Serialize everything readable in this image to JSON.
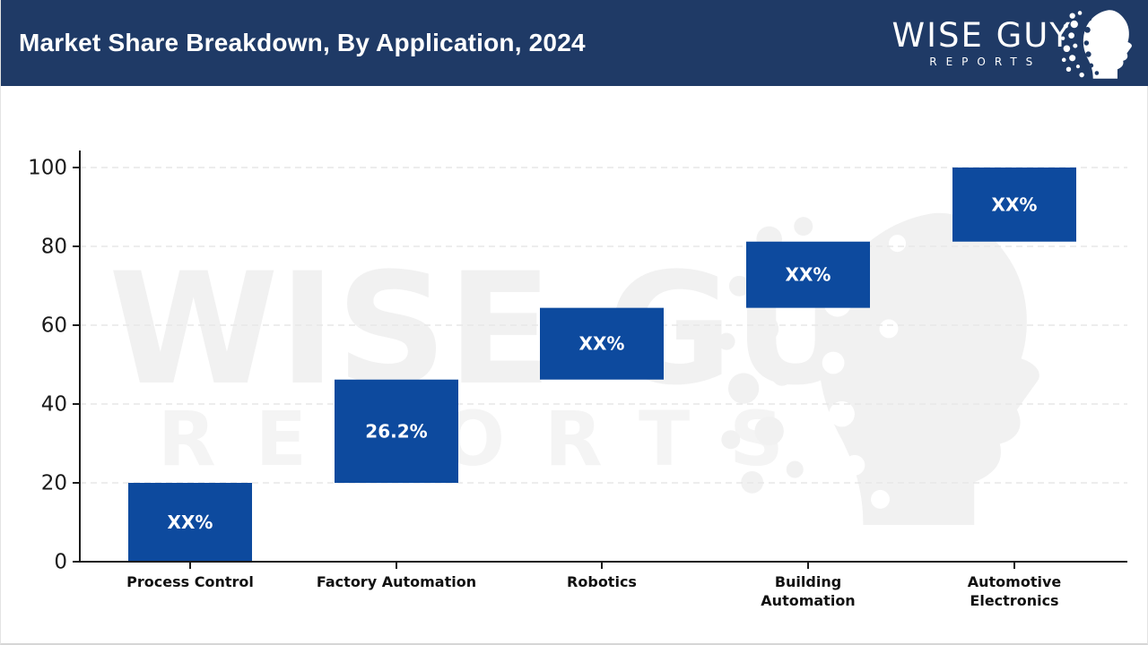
{
  "header": {
    "title": "Market Share Breakdown, By Application, 2024",
    "logo": {
      "line1": "WISE GUY",
      "line2": "REPORTS"
    }
  },
  "watermark": {
    "line1": "WISE GUY",
    "line2": "REPORTS"
  },
  "theme": {
    "header_bg": "#1f3a66",
    "bar_color": "#0d4a9e",
    "bar_label_color": "#ffffff",
    "axis_color": "#1c1c1c",
    "grid_color": "#e7e7e7",
    "background": "#ffffff"
  },
  "chart_data": {
    "type": "bar",
    "subtype": "waterfall",
    "title": "Market Share Breakdown, By Application, 2024",
    "categories": [
      "Process Control",
      "Factory Automation",
      "Robotics",
      "Building\nAutomation",
      "Automotive\nElectronics"
    ],
    "segments": [
      {
        "category": "Process Control",
        "start": 0,
        "end": 20,
        "label": "XX%"
      },
      {
        "category": "Factory Automation",
        "start": 20,
        "end": 46.2,
        "label": "26.2%"
      },
      {
        "category": "Robotics",
        "start": 46.2,
        "end": 64.4,
        "label": "XX%"
      },
      {
        "category": "Building Automation",
        "start": 64.4,
        "end": 81.2,
        "label": "XX%"
      },
      {
        "category": "Automotive Electronics",
        "start": 81.2,
        "end": 100,
        "label": "XX%"
      }
    ],
    "xlabel": "",
    "ylabel": "",
    "ylim": [
      0,
      100
    ],
    "yticks": [
      0,
      20,
      40,
      60,
      80,
      100
    ],
    "grid": "horizontal-dashed",
    "legend": null
  }
}
